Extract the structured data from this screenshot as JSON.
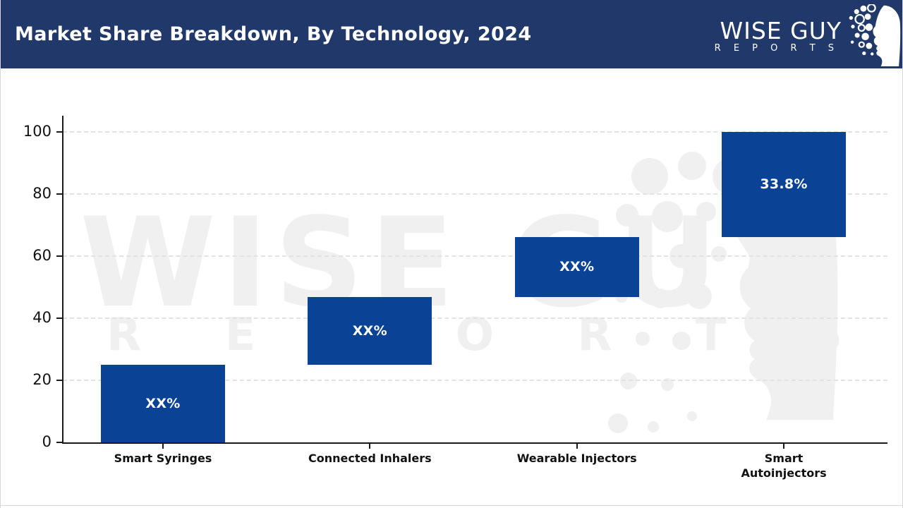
{
  "header": {
    "title": "Market Share Breakdown, By Technology, 2024",
    "background_color": "#20386a",
    "logo": {
      "wordmark": "WISE GUY",
      "subtext": "R E P O R T S"
    }
  },
  "watermark": {
    "line1": "WISE GUY",
    "line2": "R E P O R T S"
  },
  "chart_data": {
    "type": "bar",
    "subtype": "floating-waterfall-segments",
    "title": "Market Share Breakdown, By Technology, 2024",
    "categories": [
      "Smart Syringes",
      "Connected Inhalers",
      "Wearable Injectors",
      "Smart Autoinjectors"
    ],
    "bars": [
      {
        "category": "Smart Syringes",
        "start": 0,
        "end": 25,
        "label": "XX%"
      },
      {
        "category": "Connected Inhalers",
        "start": 25,
        "end": 46.9,
        "label": "XX%"
      },
      {
        "category": "Wearable Injectors",
        "start": 46.9,
        "end": 66.2,
        "label": "XX%"
      },
      {
        "category": "Smart Autoinjectors",
        "start": 66.2,
        "end": 100,
        "label": "33.8%",
        "value": 33.8,
        "wrap_label": true
      }
    ],
    "segment_sizes": [
      25,
      21.9,
      19.3,
      33.8
    ],
    "ylim": [
      0,
      100
    ],
    "yticks": [
      0,
      20,
      40,
      60,
      80,
      100
    ],
    "xlabel": "",
    "ylabel": "",
    "grid": "horizontal-dashed",
    "legend": "none",
    "bar_color": "#0a4296",
    "axis_color": "#1a1a1a",
    "gridline_color": "#e2e2e2"
  }
}
